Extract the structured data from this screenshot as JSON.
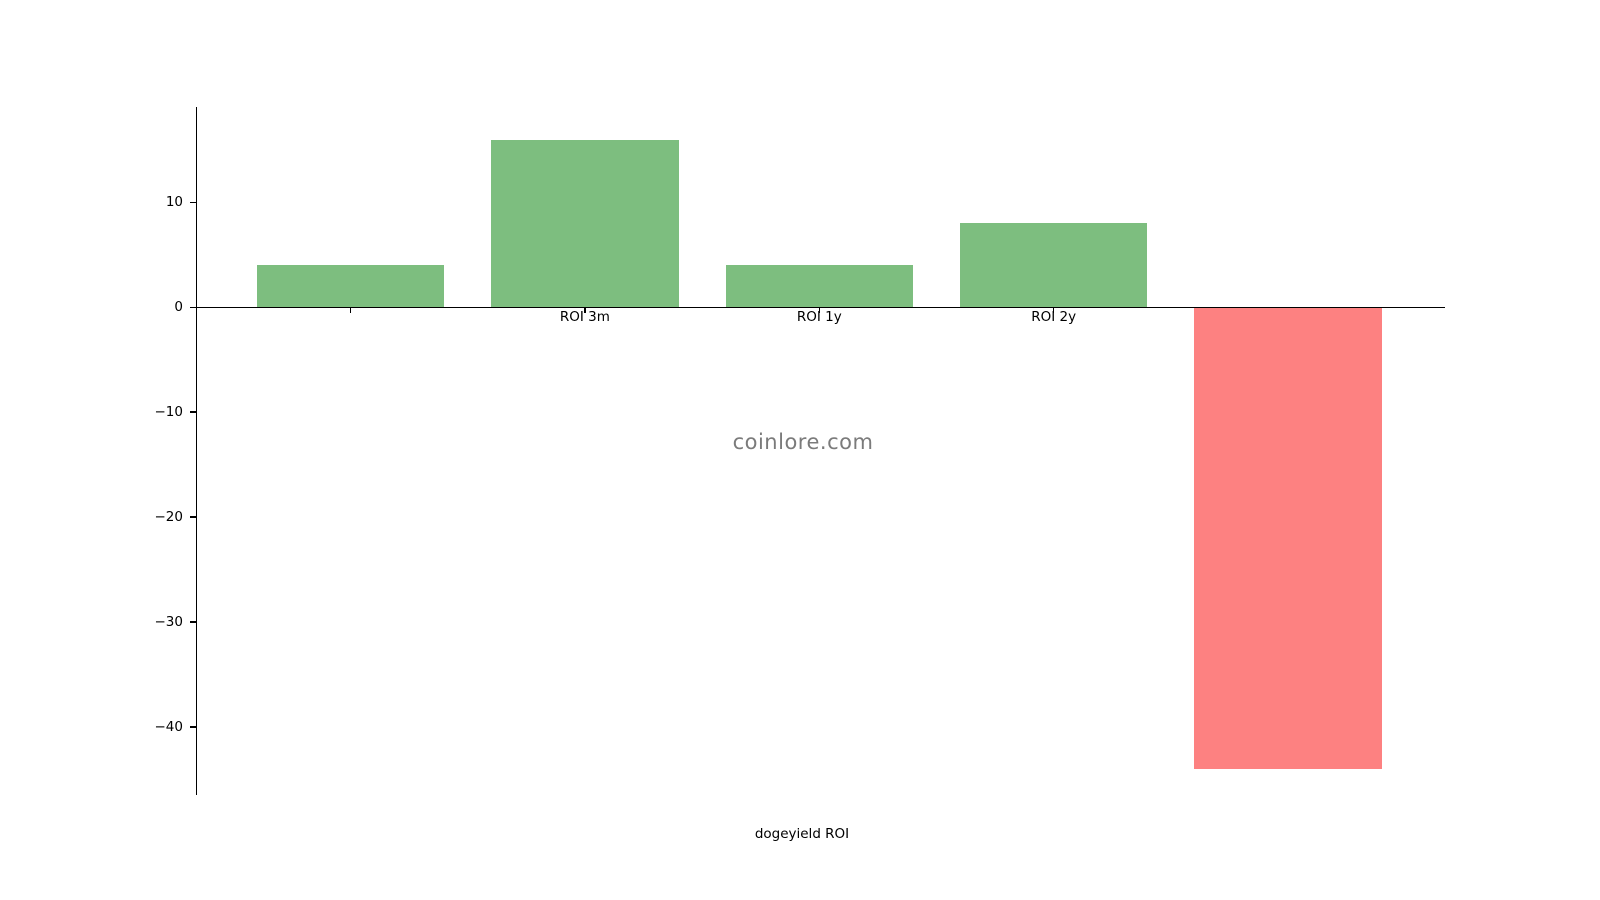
{
  "watermark": {
    "text": "coinlore.com",
    "color": "#7b7b7b"
  },
  "chart_data": {
    "type": "bar",
    "title": "dogeyield ROI",
    "categories": [
      "",
      "ROI 3m",
      "ROI 1y",
      "ROI 2y",
      ""
    ],
    "values": [
      4,
      16,
      4,
      8,
      -44
    ],
    "yticks": [
      10,
      0,
      -10,
      -20,
      -30,
      -40
    ],
    "ylim": [
      -46.5,
      19.1
    ],
    "xlabel": "",
    "ylabel": "",
    "grid": false,
    "legend": null,
    "positive_color": "#7dbe7f",
    "negative_color": "#fd8181",
    "axis_color": "#000000",
    "watermark": "coinlore.com"
  }
}
